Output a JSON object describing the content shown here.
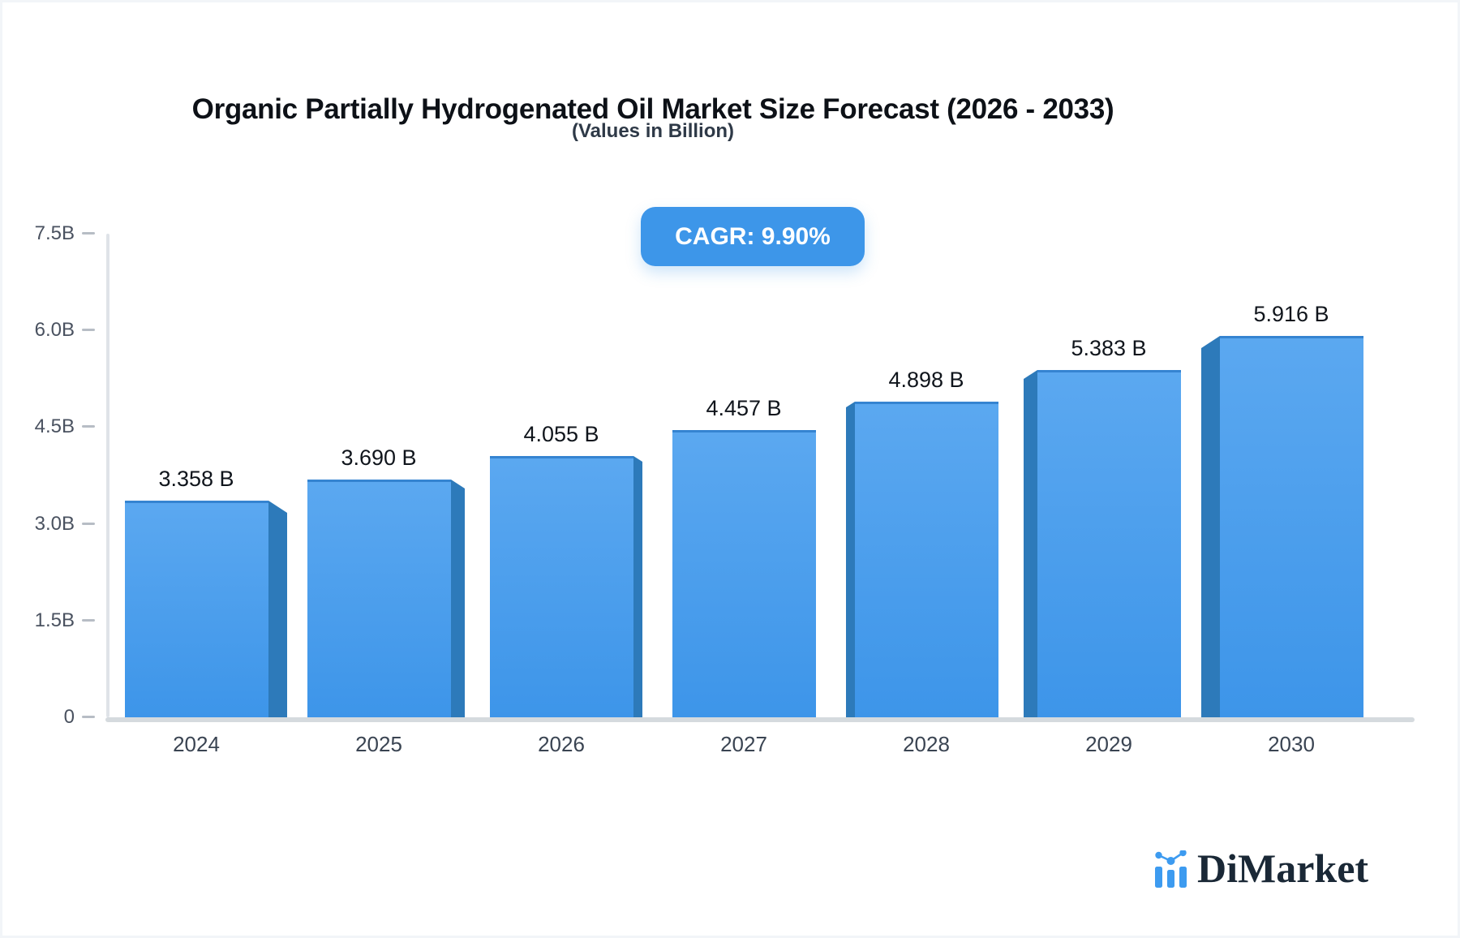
{
  "header": {
    "title": "Organic Partially Hydrogenated Oil Market Size Forecast (2026 - 2033)",
    "subtitle": "(Values in Billion)"
  },
  "badge": {
    "label": "CAGR: 9.90%",
    "bg_color": "#3D96E9",
    "text_color": "#ffffff"
  },
  "chart_data": {
    "type": "bar",
    "categories": [
      "2024",
      "2025",
      "2026",
      "2027",
      "2028",
      "2029",
      "2030"
    ],
    "values": [
      3.358,
      3.69,
      4.055,
      4.457,
      4.898,
      5.383,
      5.916
    ],
    "value_labels": [
      "3.358 B",
      "3.690 B",
      "4.055 B",
      "4.457 B",
      "4.898 B",
      "5.383 B",
      "5.916 B"
    ],
    "title": "Organic Partially Hydrogenated Oil Market Size Forecast (2026 - 2033)",
    "subtitle": "(Values in Billion)",
    "xlabel": "",
    "ylabel": "",
    "ylim": [
      0,
      7.5
    ],
    "y_tick_values": [
      0,
      1.5,
      3.0,
      4.5,
      6.0,
      7.5
    ],
    "y_tick_labels": [
      "0",
      "1.5B",
      "3.0B",
      "4.5B",
      "6.0B",
      "7.5B"
    ],
    "grid": false,
    "legend": "none",
    "bar_color_top": "#5BA8F0",
    "bar_color_bottom": "#3D95E9",
    "bar_side_color": "#2D7ABA",
    "axis_color": "#dfe3e8",
    "baseline_color": "#d5dade"
  },
  "footer": {
    "brand": "DiMarket",
    "logo_icon": "bar-chart-logo-icon",
    "brand_color": "#1a2836",
    "icon_color": "#3d9bf0"
  }
}
